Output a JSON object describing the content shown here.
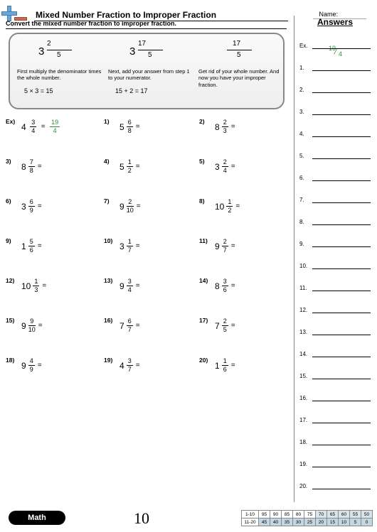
{
  "header": {
    "title": "Mixed Number Fraction to Improper Fraction",
    "name_label": "Name:"
  },
  "instruction": "Convert the mixed number fraction to improper fraction.",
  "guide": {
    "col1": {
      "whole": "3",
      "num": "2",
      "den": "5",
      "text": "First multiply the denominator times the whole number.",
      "calc": "5 × 3 = 15"
    },
    "col2": {
      "whole": "3",
      "num": "17",
      "den": "5",
      "text": "Next, add your answer from step 1 to your numerator.",
      "calc": "15 + 2 = 17"
    },
    "col3": {
      "num": "17",
      "den": "5",
      "text": "Get rid of your whole number. And now you have your improper fraction."
    }
  },
  "example": {
    "label": "Ex)",
    "whole": "4",
    "num": "3",
    "den": "4",
    "ans_num": "19",
    "ans_den": "4"
  },
  "problems": [
    {
      "n": "1)",
      "w": "5",
      "num": "6",
      "den": "8"
    },
    {
      "n": "2)",
      "w": "8",
      "num": "2",
      "den": "3"
    },
    {
      "n": "3)",
      "w": "8",
      "num": "7",
      "den": "8"
    },
    {
      "n": "4)",
      "w": "5",
      "num": "1",
      "den": "2"
    },
    {
      "n": "5)",
      "w": "3",
      "num": "2",
      "den": "4"
    },
    {
      "n": "6)",
      "w": "3",
      "num": "6",
      "den": "9"
    },
    {
      "n": "7)",
      "w": "9",
      "num": "2",
      "den": "10"
    },
    {
      "n": "8)",
      "w": "10",
      "num": "1",
      "den": "2"
    },
    {
      "n": "9)",
      "w": "1",
      "num": "5",
      "den": "6"
    },
    {
      "n": "10)",
      "w": "3",
      "num": "1",
      "den": "7"
    },
    {
      "n": "11)",
      "w": "9",
      "num": "2",
      "den": "7"
    },
    {
      "n": "12)",
      "w": "10",
      "num": "1",
      "den": "3"
    },
    {
      "n": "13)",
      "w": "9",
      "num": "3",
      "den": "4"
    },
    {
      "n": "14)",
      "w": "8",
      "num": "3",
      "den": "6"
    },
    {
      "n": "15)",
      "w": "9",
      "num": "9",
      "den": "10"
    },
    {
      "n": "16)",
      "w": "7",
      "num": "6",
      "den": "7"
    },
    {
      "n": "17)",
      "w": "7",
      "num": "2",
      "den": "5"
    },
    {
      "n": "18)",
      "w": "9",
      "num": "4",
      "den": "9"
    },
    {
      "n": "19)",
      "w": "4",
      "num": "3",
      "den": "7"
    },
    {
      "n": "20)",
      "w": "1",
      "num": "1",
      "den": "6"
    }
  ],
  "answers": {
    "title": "Answers",
    "ex_label": "Ex.",
    "ex_num": "19",
    "ex_den": "4",
    "rows": [
      "1.",
      "2.",
      "3.",
      "4.",
      "5.",
      "6.",
      "7.",
      "8.",
      "9.",
      "10.",
      "11.",
      "12.",
      "13.",
      "14.",
      "15.",
      "16.",
      "17.",
      "18.",
      "19.",
      "20."
    ]
  },
  "footer": {
    "badge": "Math",
    "page_no": "10",
    "row_labels": [
      "1-10",
      "11-20"
    ],
    "row1": [
      "95",
      "90",
      "85",
      "80",
      "75",
      "70",
      "65",
      "60",
      "55",
      "50"
    ],
    "row2": [
      "45",
      "40",
      "35",
      "30",
      "25",
      "20",
      "15",
      "10",
      "5",
      "0"
    ]
  },
  "colors": {
    "answer_green": "#2a9040",
    "shade1": "#d8e4ec",
    "shade2": "#c4d6e2"
  }
}
